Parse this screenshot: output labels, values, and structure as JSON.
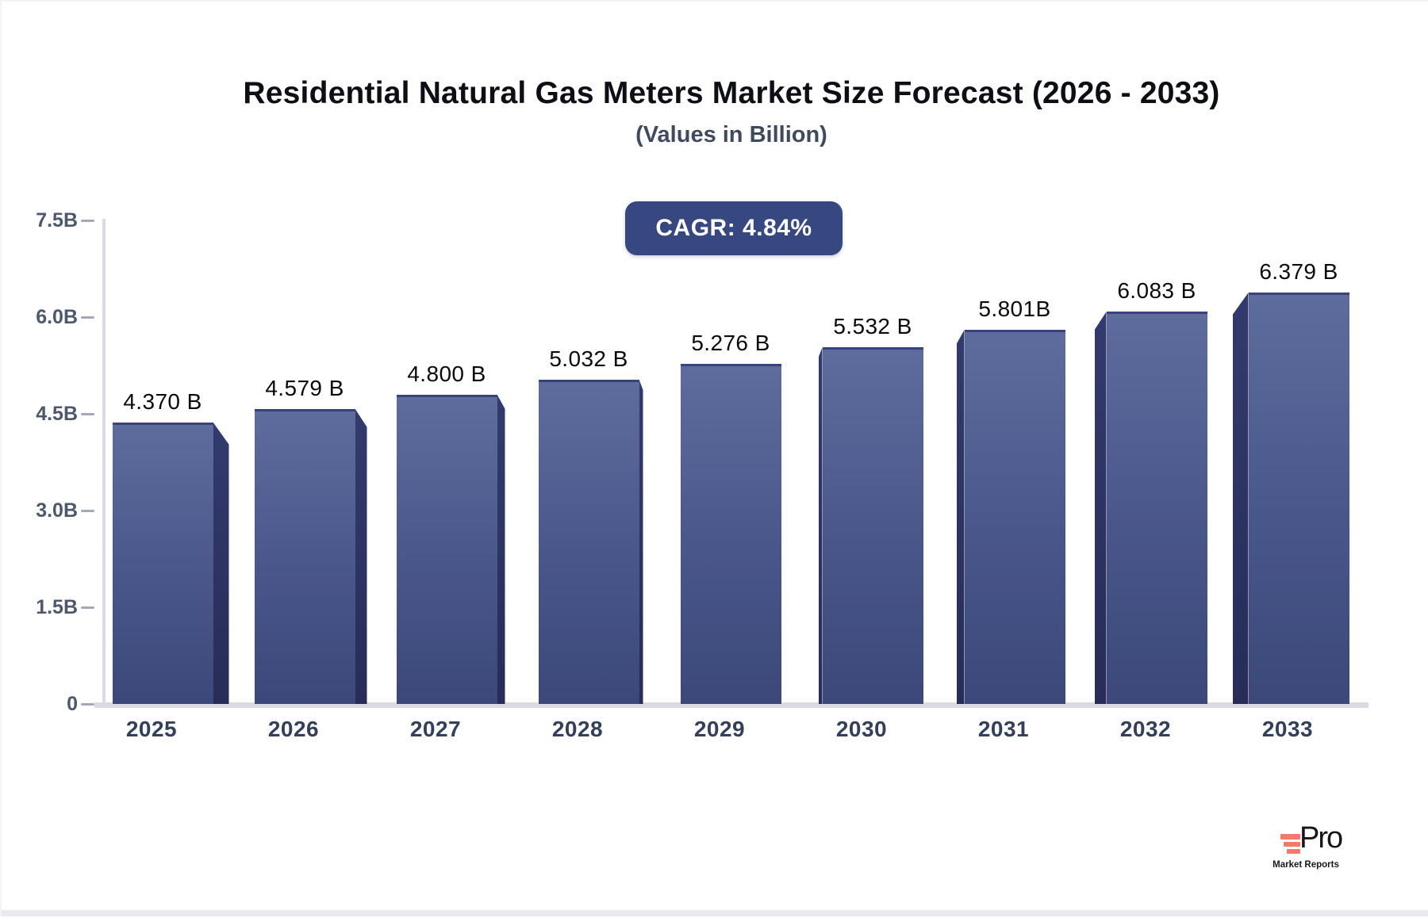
{
  "header": {
    "title": "Residential Natural Gas Meters Market Size Forecast (2026 - 2033)",
    "subtitle": "(Values in Billion)",
    "cagr_label": "CAGR: 4.84%"
  },
  "chart_data": {
    "type": "bar",
    "title": "Residential Natural Gas Meters Market Size Forecast (2026 - 2033)",
    "subtitle": "(Values in Billion)",
    "cagr_percent": 4.84,
    "categories": [
      "2025",
      "2026",
      "2027",
      "2028",
      "2029",
      "2030",
      "2031",
      "2032",
      "2033"
    ],
    "values": [
      4.37,
      4.579,
      4.8,
      5.032,
      5.276,
      5.532,
      5.801,
      6.083,
      6.379
    ],
    "value_labels": [
      "4.370 B",
      "4.579 B",
      "4.800 B",
      "5.032 B",
      "5.276 B",
      "5.532 B",
      "5.801B",
      "6.083 B",
      "6.379 B"
    ],
    "unit": "Billion",
    "xlabel": "",
    "ylabel": "",
    "ylim": [
      0,
      7.5
    ],
    "y_tick_values": [
      0,
      1.5,
      3.0,
      4.5,
      6.0,
      7.5
    ],
    "y_tick_labels": [
      "0",
      "1.5B",
      "3.0B",
      "4.5B",
      "6.0B",
      "7.5B"
    ],
    "grid": false,
    "legend": false,
    "style": "3d-perspective-bars",
    "colors": {
      "bar_top": "#5e6c9d",
      "bar_bottom": "#3b4879",
      "bar_side": "#2a3160",
      "axis": "#d9dbe3",
      "tick": "#a3a8b3",
      "y_label": "#4d586b",
      "x_label": "#343f59",
      "value_label": "#0a0a0c",
      "badge_background": "#374880"
    }
  },
  "logo": {
    "name": "Pro",
    "subtext": "Market Reports",
    "accent_color": "#f4796c"
  }
}
